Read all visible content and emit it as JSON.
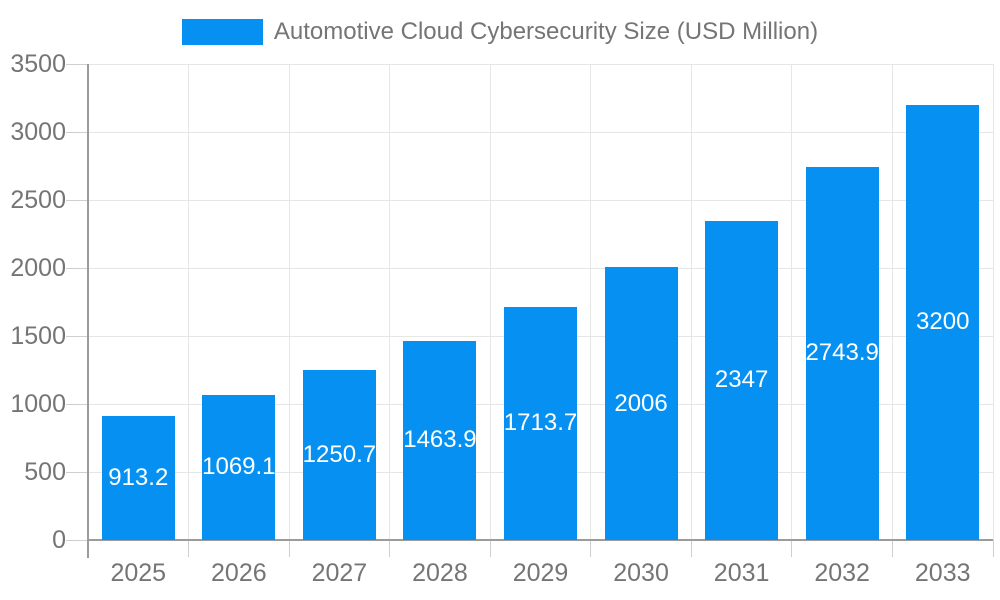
{
  "legend": {
    "label": "Automotive Cloud Cybersecurity Size (USD Million)"
  },
  "colors": {
    "bar": "#0691f2",
    "axis_text": "#757575",
    "grid_line": "#e6e6e6",
    "tick_line": "#cfcfcf",
    "axis_line": "#9b9b9b",
    "value_label": "#ffffff",
    "background": "#ffffff"
  },
  "chart_data": {
    "type": "bar",
    "title": "Automotive Cloud Cybersecurity Size (USD Million)",
    "categories": [
      "2025",
      "2026",
      "2027",
      "2028",
      "2029",
      "2030",
      "2031",
      "2032",
      "2033"
    ],
    "values": [
      913.2,
      1069.1,
      1250.7,
      1463.9,
      1713.7,
      2006,
      2347,
      2743.9,
      3200
    ],
    "value_labels": [
      "913.2",
      "1069.1",
      "1250.7",
      "1463.9",
      "1713.7",
      "2006",
      "2347",
      "2743.9",
      "3200"
    ],
    "xlabel": "",
    "ylabel": "",
    "ylim": [
      0,
      3500
    ],
    "yticks": [
      0,
      500,
      1000,
      1500,
      2000,
      2500,
      3000,
      3500
    ],
    "grid": true,
    "legend_position": "top",
    "value_labels_inside_bars": true
  }
}
